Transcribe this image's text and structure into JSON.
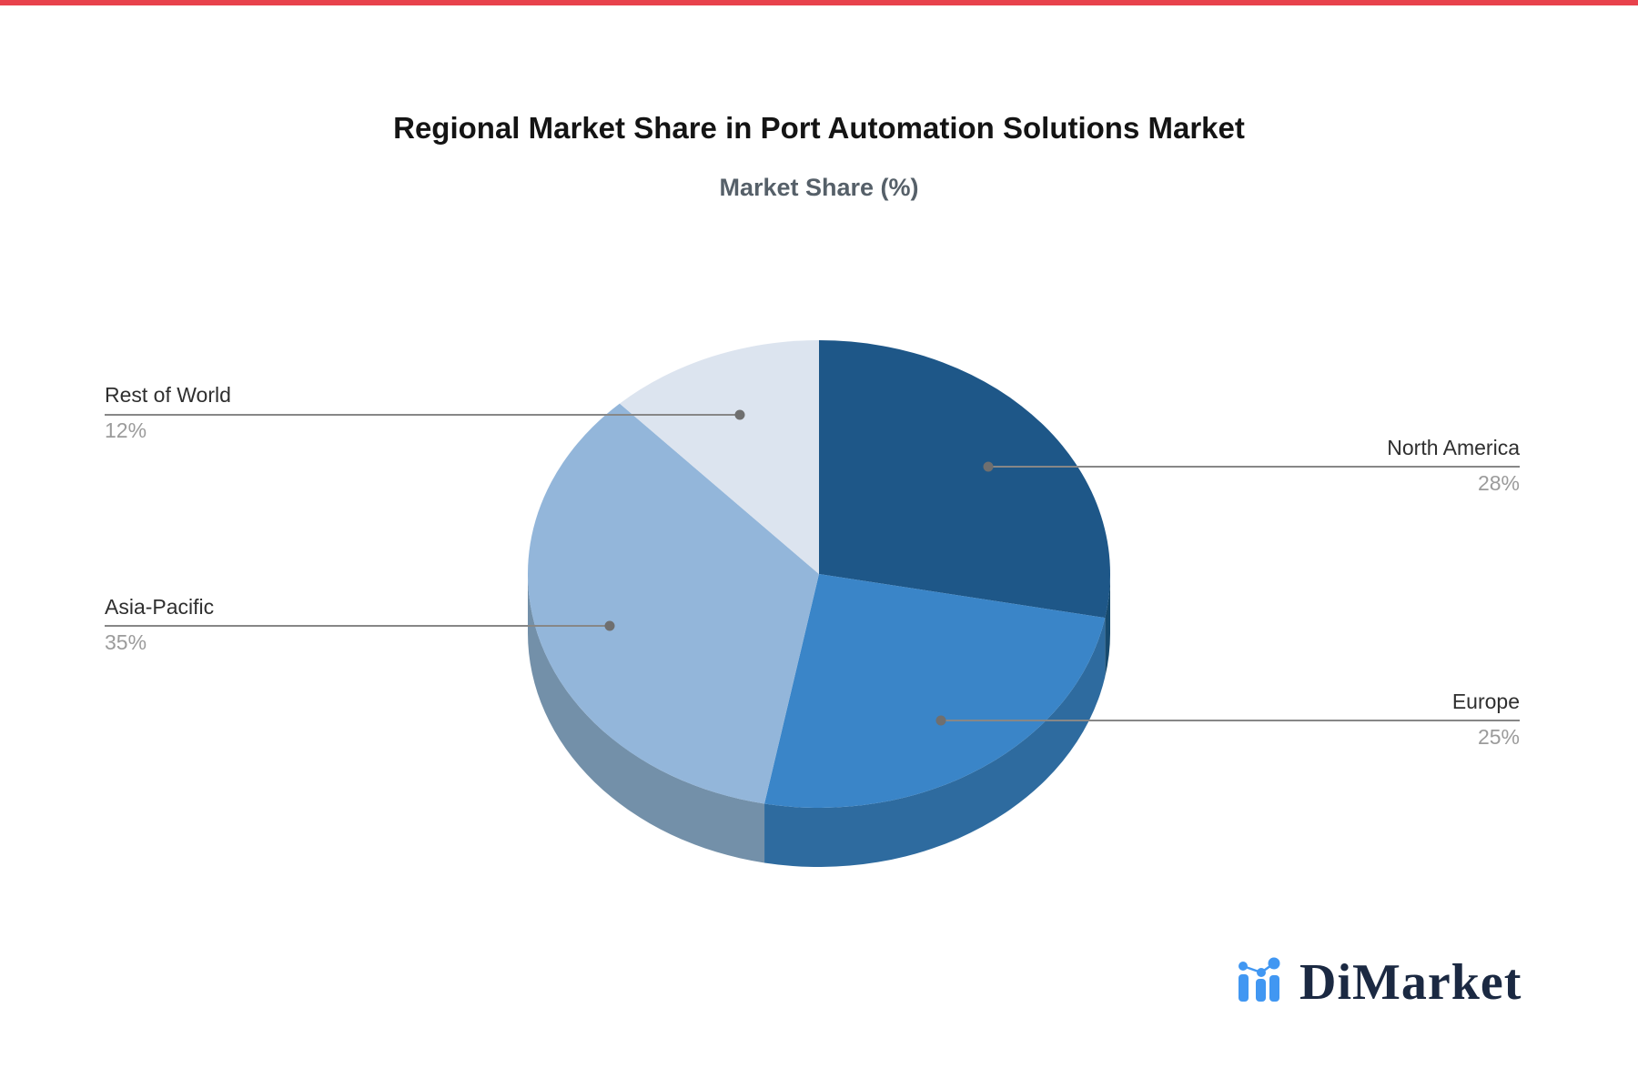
{
  "chart_data": {
    "type": "pie",
    "style": "3d-pie",
    "title": "Regional Market Share in Port Automation Solutions Market",
    "subtitle": "Market Share (%)",
    "unit": "%",
    "labels": [
      "North America",
      "Europe",
      "Asia-Pacific",
      "Rest of World"
    ],
    "values": [
      28,
      25,
      35,
      12
    ],
    "legend_position": "callout-labels",
    "slices": [
      {
        "label": "North America",
        "value": 28,
        "pct_text": "28%",
        "color": "#1e5788",
        "side_color": "#174a6e"
      },
      {
        "label": "Europe",
        "value": 25,
        "pct_text": "25%",
        "color": "#3a85c8",
        "side_color": "#2e6b9f"
      },
      {
        "label": "Asia-Pacific",
        "value": 35,
        "pct_text": "35%",
        "color": "#93b6da",
        "side_color": "#7390a9"
      },
      {
        "label": "Rest of World",
        "value": 12,
        "pct_text": "12%",
        "color": "#dce4ef",
        "side_color": "#b9c4d4"
      }
    ]
  },
  "branding": {
    "logo_text": "DiMarket",
    "logo_icon": "bar-line-chart-icon",
    "logo_text_color": "#1b2942",
    "icon_color": "#4197f2"
  },
  "colors": {
    "background": "#ffffff",
    "top_bar": "#e8424c",
    "title": "#141414",
    "subtitle": "#566069",
    "label_text": "#2f2f2f",
    "pct_text": "#9b9b9b",
    "leader_line": "#878787",
    "leader_dot": "#6f6f6f"
  }
}
